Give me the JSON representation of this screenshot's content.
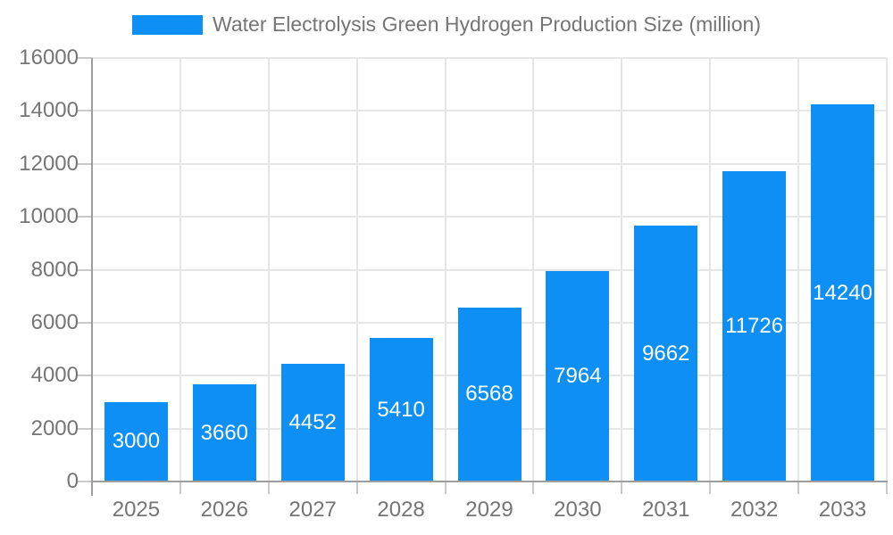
{
  "legend": {
    "label": "Water Electrolysis Green Hydrogen Production Size (million)"
  },
  "colors": {
    "bar": "#0E8FF5",
    "grid": "#e6e6e6",
    "axis": "#9e9e9e",
    "tick": "#c9c9c9",
    "text": "#757575",
    "value_label": "#ffffff",
    "background": "#ffffff"
  },
  "chart_data": {
    "type": "bar",
    "title": "Water Electrolysis Green Hydrogen Production Size (million)",
    "categories": [
      "2025",
      "2026",
      "2027",
      "2028",
      "2029",
      "2030",
      "2031",
      "2032",
      "2033"
    ],
    "values": [
      3000,
      3660,
      4452,
      5410,
      6568,
      7964,
      9662,
      11726,
      14240
    ],
    "xlabel": "",
    "ylabel": "",
    "ylim": [
      0,
      16000
    ],
    "ytick_step": 2000,
    "ytick_labels": [
      "0",
      "2000",
      "4000",
      "6000",
      "8000",
      "10000",
      "12000",
      "14000",
      "16000"
    ],
    "grid": true,
    "value_labels": "inside-center",
    "legend_position": "top-center"
  }
}
